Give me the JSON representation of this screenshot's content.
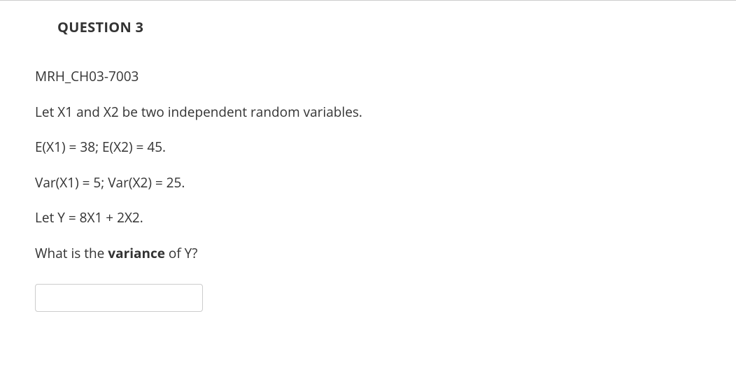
{
  "question": {
    "header": "QUESTION 3",
    "lines": [
      "MRH_CH03-7003",
      "Let X1 and X2 be two independent random variables.",
      "E(X1) = 38; E(X2) = 45.",
      "Var(X1) = 5; Var(X2) = 25.",
      "Let Y = 8X1 + 2X2."
    ],
    "prompt_prefix": "What is the ",
    "prompt_bold": "variance",
    "prompt_suffix": " of Y?",
    "answer_value": ""
  },
  "colors": {
    "text": "#333333",
    "border": "#cccccc",
    "background": "#ffffff"
  }
}
